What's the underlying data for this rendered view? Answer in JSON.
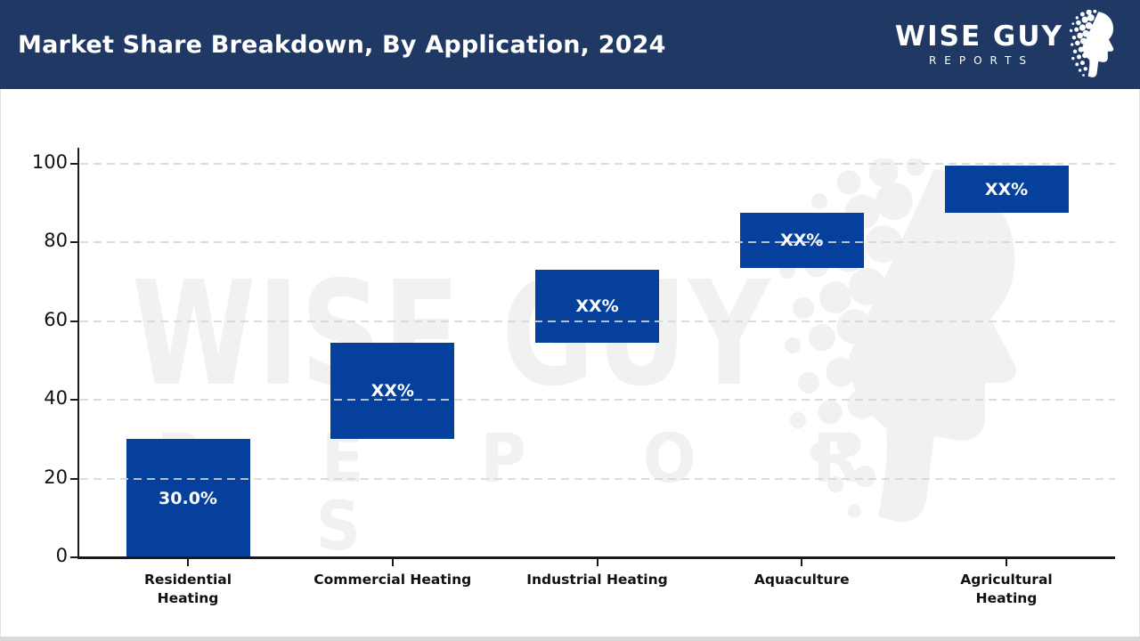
{
  "header": {
    "title": "Market Share Breakdown, By Application, 2024",
    "logo": {
      "line1": "WISE GUY",
      "line2": "REPORTS"
    }
  },
  "watermark": {
    "line1": "WISE GUY",
    "line2": "R E P O R T S"
  },
  "chart_data": {
    "type": "bar",
    "subtype": "waterfall",
    "title": "Market Share Breakdown, By Application, 2024",
    "categories": [
      "Residential Heating",
      "Commercial Heating",
      "Industrial Heating",
      "Aquaculture",
      "Agricultural Heating"
    ],
    "category_display": [
      "Residential\nHeating",
      "Commercial Heating",
      "Industrial Heating",
      "Aquaculture",
      "Agricultural\nHeating"
    ],
    "segments": [
      [
        0,
        30
      ],
      [
        30,
        54.5
      ],
      [
        54.5,
        73
      ],
      [
        73.5,
        87.5
      ],
      [
        87.5,
        99.5
      ]
    ],
    "bar_labels": [
      "30.0%",
      "XX%",
      "XX%",
      "XX%",
      "XX%"
    ],
    "yticks": [
      0,
      20,
      40,
      60,
      80,
      100
    ],
    "ylim": [
      0,
      105
    ],
    "xlabel": "",
    "ylabel": "",
    "grid": "horizontal-dashed",
    "legend": "none",
    "colors": {
      "bar": "#05419C",
      "header_bg": "#1F3864",
      "grid": "#D9D9D9",
      "axis": "#1A1A1A",
      "bar_label": "#FFFFFF",
      "watermark": "#F1F1F1",
      "footer_strip": "#D9D9D9"
    }
  }
}
